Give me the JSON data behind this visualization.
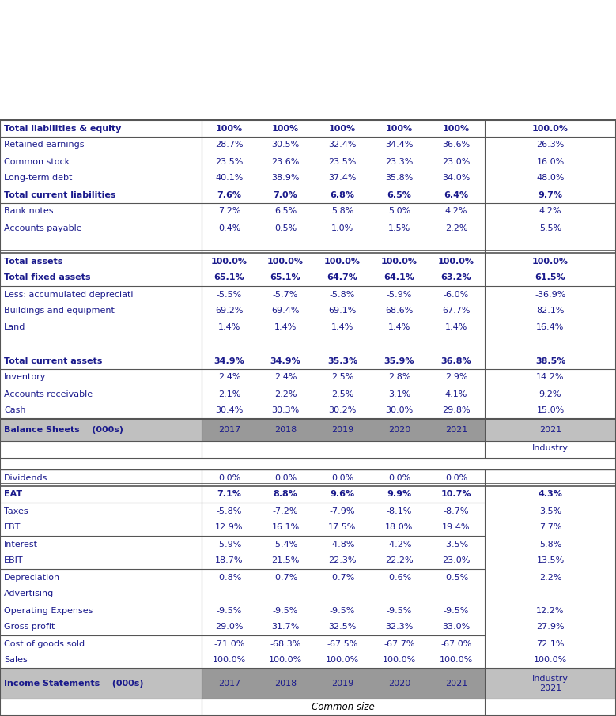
{
  "common_size_label": "Common size",
  "income_header_col0": "Income Statements    (000s)",
  "balance_header_col0": "Balance Sheets    (000s)",
  "years": [
    "2017",
    "2018",
    "2019",
    "2020",
    "2021"
  ],
  "industry_label": "Industry\n2021",
  "income_rows": [
    {
      "label": "Sales",
      "values": [
        "100.0%",
        "100.0%",
        "100.0%",
        "100.0%",
        "100.0%"
      ],
      "industry": "100.0%",
      "bold": false,
      "bottom_border": false,
      "double_bottom": false,
      "underline_above": false
    },
    {
      "label": "Cost of goods sold",
      "values": [
        "-71.0%",
        "-68.3%",
        "-67.5%",
        "-67.7%",
        "-67.0%"
      ],
      "industry": "72.1%",
      "bold": false,
      "bottom_border": true,
      "double_bottom": false,
      "underline_above": false
    },
    {
      "label": "Gross profit",
      "values": [
        "29.0%",
        "31.7%",
        "32.5%",
        "32.3%",
        "33.0%"
      ],
      "industry": "27.9%",
      "bold": false,
      "bottom_border": false,
      "double_bottom": false,
      "underline_above": false
    },
    {
      "label": "Operating Expenses",
      "values": [
        "-9.5%",
        "-9.5%",
        "-9.5%",
        "-9.5%",
        "-9.5%"
      ],
      "industry": "12.2%",
      "bold": false,
      "bottom_border": false,
      "double_bottom": false,
      "underline_above": false
    },
    {
      "label": "Advertising",
      "values": [
        "",
        "",
        "",
        "",
        ""
      ],
      "industry": "",
      "bold": false,
      "bottom_border": false,
      "double_bottom": false,
      "underline_above": false
    },
    {
      "label": "Depreciation",
      "values": [
        "-0.8%",
        "-0.7%",
        "-0.7%",
        "-0.6%",
        "-0.5%"
      ],
      "industry": "2.2%",
      "bold": false,
      "bottom_border": true,
      "double_bottom": false,
      "underline_above": false
    },
    {
      "label": "EBIT",
      "values": [
        "18.7%",
        "21.5%",
        "22.3%",
        "22.2%",
        "23.0%"
      ],
      "industry": "13.5%",
      "bold": false,
      "bottom_border": false,
      "double_bottom": false,
      "underline_above": false
    },
    {
      "label": "Interest",
      "values": [
        "-5.9%",
        "-5.4%",
        "-4.8%",
        "-4.2%",
        "-3.5%"
      ],
      "industry": "5.8%",
      "bold": false,
      "bottom_border": true,
      "double_bottom": false,
      "underline_above": false
    },
    {
      "label": "EBT",
      "values": [
        "12.9%",
        "16.1%",
        "17.5%",
        "18.0%",
        "19.4%"
      ],
      "industry": "7.7%",
      "bold": false,
      "bottom_border": false,
      "double_bottom": false,
      "underline_above": false
    },
    {
      "label": "Taxes",
      "values": [
        "-5.8%",
        "-7.2%",
        "-7.9%",
        "-8.1%",
        "-8.7%"
      ],
      "industry": "3.5%",
      "bold": false,
      "bottom_border": true,
      "double_bottom": false,
      "underline_above": false
    },
    {
      "label": "EAT",
      "values": [
        "7.1%",
        "8.8%",
        "9.6%",
        "9.9%",
        "10.7%"
      ],
      "industry": "4.3%",
      "bold": true,
      "bottom_border": false,
      "double_bottom": true,
      "underline_above": false
    },
    {
      "label": "Dividends",
      "values": [
        "0.0%",
        "0.0%",
        "0.0%",
        "0.0%",
        "0.0%"
      ],
      "industry": "",
      "bold": false,
      "bottom_border": false,
      "double_bottom": false,
      "underline_above": false
    }
  ],
  "balance_rows": [
    {
      "label": "Cash",
      "values": [
        "30.4%",
        "30.3%",
        "30.2%",
        "30.0%",
        "29.8%"
      ],
      "industry": "15.0%",
      "bold": false,
      "bottom_border": false,
      "double_bottom": false,
      "underline_above": false
    },
    {
      "label": "Accounts receivable",
      "values": [
        "2.1%",
        "2.2%",
        "2.5%",
        "3.1%",
        "4.1%"
      ],
      "industry": "9.2%",
      "bold": false,
      "bottom_border": false,
      "double_bottom": false,
      "underline_above": false
    },
    {
      "label": "Inventory",
      "values": [
        "2.4%",
        "2.4%",
        "2.5%",
        "2.8%",
        "2.9%"
      ],
      "industry": "14.2%",
      "bold": false,
      "bottom_border": false,
      "double_bottom": false,
      "underline_above": false
    },
    {
      "label": "Total current assets",
      "values": [
        "34.9%",
        "34.9%",
        "35.3%",
        "35.9%",
        "36.8%"
      ],
      "industry": "38.5%",
      "bold": true,
      "bottom_border": false,
      "double_bottom": false,
      "underline_above": true
    },
    {
      "label": "",
      "values": [
        "",
        "",
        "",
        "",
        ""
      ],
      "industry": "",
      "bold": false,
      "bottom_border": false,
      "double_bottom": false,
      "underline_above": false
    },
    {
      "label": "Land",
      "values": [
        "1.4%",
        "1.4%",
        "1.4%",
        "1.4%",
        "1.4%"
      ],
      "industry": "16.4%",
      "bold": false,
      "bottom_border": false,
      "double_bottom": false,
      "underline_above": false
    },
    {
      "label": "Buildings and equipment",
      "values": [
        "69.2%",
        "69.4%",
        "69.1%",
        "68.6%",
        "67.7%"
      ],
      "industry": "82.1%",
      "bold": false,
      "bottom_border": false,
      "double_bottom": false,
      "underline_above": false
    },
    {
      "label": "Less: accumulated depreciati",
      "values": [
        "-5.5%",
        "-5.7%",
        "-5.8%",
        "-5.9%",
        "-6.0%"
      ],
      "industry": "-36.9%",
      "bold": false,
      "bottom_border": false,
      "double_bottom": false,
      "underline_above": false
    },
    {
      "label": "Total fixed assets",
      "values": [
        "65.1%",
        "65.1%",
        "64.7%",
        "64.1%",
        "63.2%"
      ],
      "industry": "61.5%",
      "bold": true,
      "bottom_border": false,
      "double_bottom": false,
      "underline_above": true
    },
    {
      "label": "Total assets",
      "values": [
        "100.0%",
        "100.0%",
        "100.0%",
        "100.0%",
        "100.0%"
      ],
      "industry": "100.0%",
      "bold": true,
      "bottom_border": false,
      "double_bottom": true,
      "underline_above": false
    },
    {
      "label": "",
      "values": [
        "",
        "",
        "",
        "",
        ""
      ],
      "industry": "",
      "bold": false,
      "bottom_border": false,
      "double_bottom": false,
      "underline_above": false
    },
    {
      "label": "Accounts payable",
      "values": [
        "0.4%",
        "0.5%",
        "1.0%",
        "1.5%",
        "2.2%"
      ],
      "industry": "5.5%",
      "bold": false,
      "bottom_border": false,
      "double_bottom": false,
      "underline_above": false
    },
    {
      "label": "Bank notes",
      "values": [
        "7.2%",
        "6.5%",
        "5.8%",
        "5.0%",
        "4.2%"
      ],
      "industry": "4.2%",
      "bold": false,
      "bottom_border": false,
      "double_bottom": false,
      "underline_above": false
    },
    {
      "label": "Total current liabilities",
      "values": [
        "7.6%",
        "7.0%",
        "6.8%",
        "6.5%",
        "6.4%"
      ],
      "industry": "9.7%",
      "bold": true,
      "bottom_border": false,
      "double_bottom": false,
      "underline_above": true
    },
    {
      "label": "Long-term debt",
      "values": [
        "40.1%",
        "38.9%",
        "37.4%",
        "35.8%",
        "34.0%"
      ],
      "industry": "48.0%",
      "bold": false,
      "bottom_border": false,
      "double_bottom": false,
      "underline_above": false
    },
    {
      "label": "Common stock",
      "values": [
        "23.5%",
        "23.6%",
        "23.5%",
        "23.3%",
        "23.0%"
      ],
      "industry": "16.0%",
      "bold": false,
      "bottom_border": false,
      "double_bottom": false,
      "underline_above": false
    },
    {
      "label": "Retained earnings",
      "values": [
        "28.7%",
        "30.5%",
        "32.4%",
        "34.4%",
        "36.6%"
      ],
      "industry": "26.3%",
      "bold": false,
      "bottom_border": false,
      "double_bottom": false,
      "underline_above": false
    },
    {
      "label": "Total liabilities & equity",
      "values": [
        "100%",
        "100%",
        "100%",
        "100%",
        "100%"
      ],
      "industry": "100.0%",
      "bold": true,
      "bottom_border": false,
      "double_bottom": false,
      "underline_above": true
    }
  ],
  "header_bg": "#999999",
  "subheader_bg": "#c0c0c0",
  "white_bg": "#ffffff",
  "text_color": "#1a1a8c",
  "border_color": "#555555",
  "font_size": 8.0,
  "header_font_size": 8.5
}
